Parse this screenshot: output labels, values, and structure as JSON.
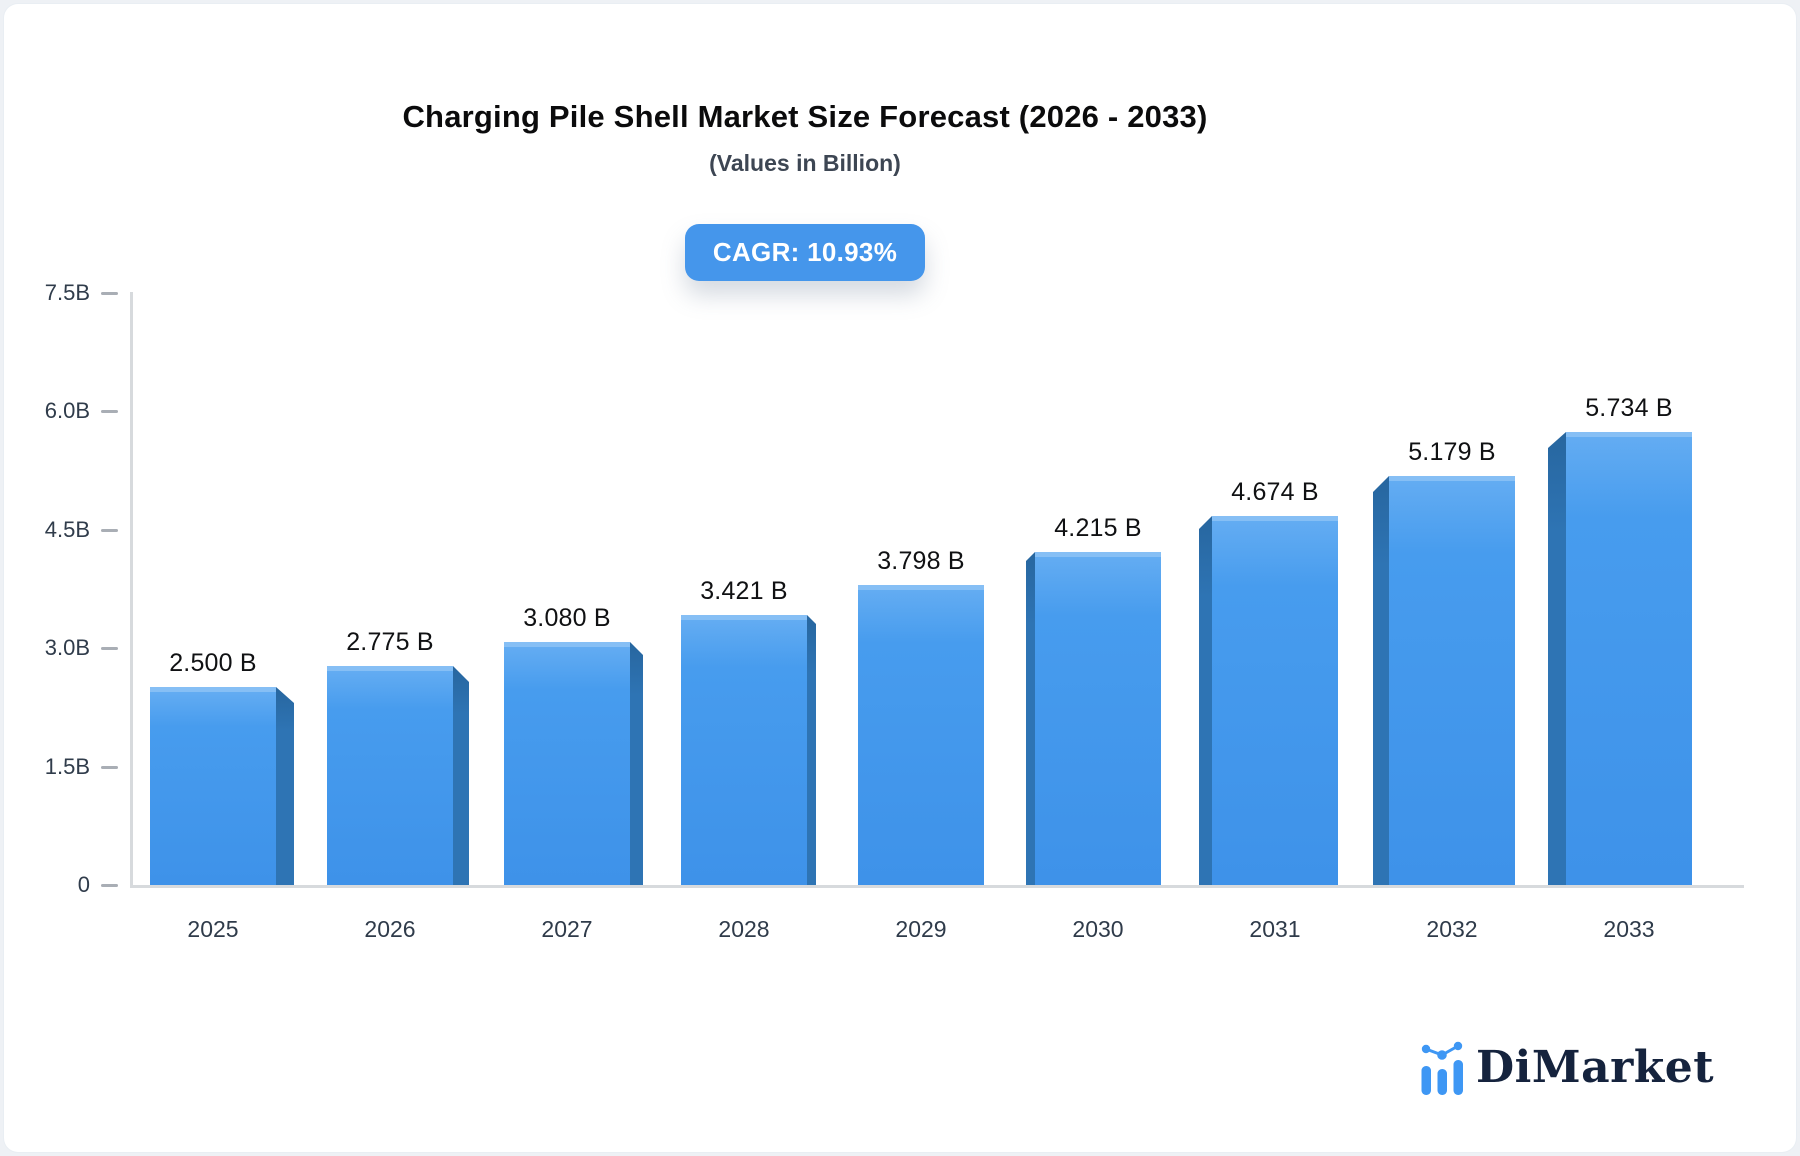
{
  "header": {
    "title": "Charging Pile Shell Market Size Forecast (2026 - 2033)",
    "subtitle": "(Values in Billion)",
    "cagr_badge": "CAGR: 10.93%"
  },
  "chart_data": {
    "type": "bar",
    "title": "Charging Pile Shell Market Size Forecast (2026 - 2033)",
    "subtitle": "(Values in Billion)",
    "annotation": "CAGR: 10.93%",
    "unit": "Billion",
    "categories": [
      "2025",
      "2026",
      "2027",
      "2028",
      "2029",
      "2030",
      "2031",
      "2032",
      "2033"
    ],
    "values": [
      2.5,
      2.775,
      3.08,
      3.421,
      3.798,
      4.215,
      4.674,
      5.179,
      5.734
    ],
    "value_labels": [
      "2.500 B",
      "2.775 B",
      "3.080 B",
      "3.421 B",
      "3.798 B",
      "4.215 B",
      "4.674 B",
      "5.179 B",
      "5.734 B"
    ],
    "ylim": [
      0,
      7.5
    ],
    "y_ticks": [
      {
        "label": "7.5B",
        "value": 7.5
      },
      {
        "label": "6.0B",
        "value": 6.0
      },
      {
        "label": "4.5B",
        "value": 4.5
      },
      {
        "label": "3.0B",
        "value": 3.0
      },
      {
        "label": "1.5B",
        "value": 1.5
      },
      {
        "label": "0",
        "value": 0
      }
    ],
    "grid": false,
    "legend": false,
    "bar_style": "3d-center-perspective"
  },
  "colors": {
    "badge_bg": "#4596EB",
    "badge_text": "#FFFFFF",
    "bar_face_top": "#63ACF2",
    "bar_face_mid": "#479CEE",
    "bar_face_bottom": "#3E92E9",
    "bar_top_edge": "#86BFF5",
    "bar_side": "#2E74B4",
    "axis_line": "#D7DADD",
    "tick_dash": "#A9AEB5",
    "tick_text": "#303C4B",
    "title_text": "#0B0B0C",
    "subtitle_text": "#3D4653",
    "logo_text": "#15233D",
    "logo_icon_blue": "#3E97F4"
  },
  "logo": {
    "text": "DiMarket",
    "icon": "mini-bar-chart-icon"
  }
}
